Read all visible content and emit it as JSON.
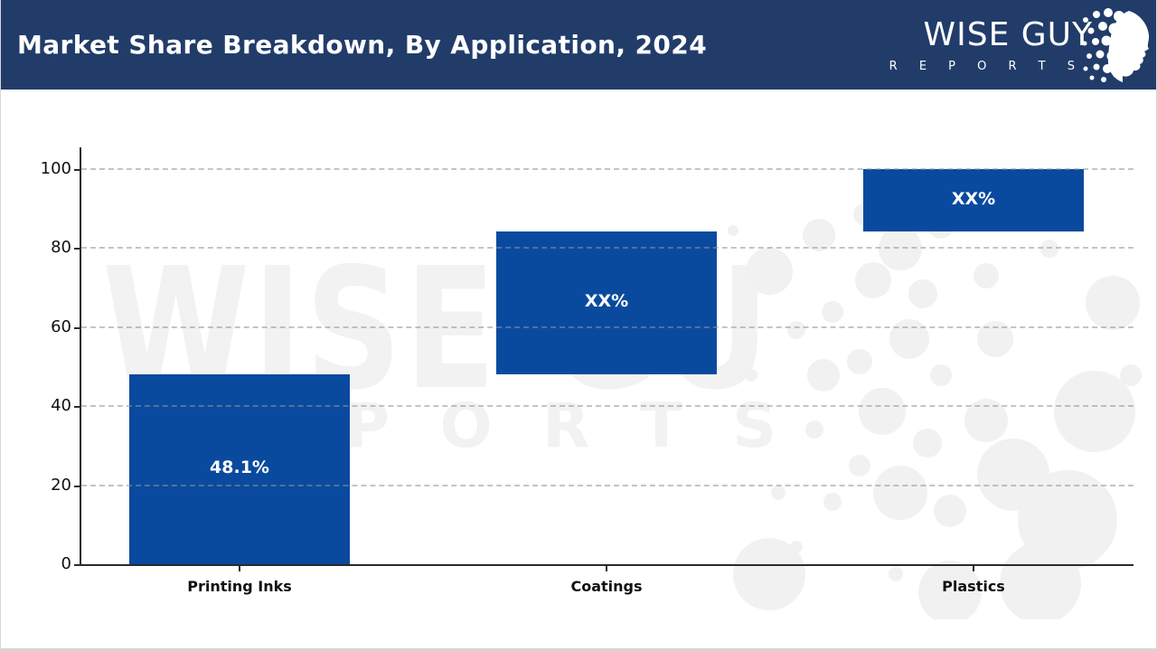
{
  "header": {
    "title": "Market Share Breakdown, By Application, 2024",
    "logo": {
      "line1": "WISE GUY",
      "line2": "R E P O R T S"
    }
  },
  "watermark": {
    "line1": "WISE GU",
    "line2": "R E P O R T S"
  },
  "chart_data": {
    "type": "bar",
    "subtype": "waterfall",
    "title": "Market Share Breakdown, By Application, 2024",
    "categories": [
      "Printing Inks",
      "Coatings",
      "Plastics"
    ],
    "segments": [
      {
        "category": "Printing Inks",
        "start": 0,
        "end": 48.1,
        "label": "48.1%"
      },
      {
        "category": "Coatings",
        "start": 48.1,
        "end": 84.2,
        "label": "XX%"
      },
      {
        "category": "Plastics",
        "start": 84.2,
        "end": 100,
        "label": "XX%"
      }
    ],
    "xlabel": "",
    "ylabel": "",
    "ylim": [
      0,
      105
    ],
    "yticks": [
      0,
      20,
      40,
      60,
      80,
      100
    ],
    "grid": true,
    "grid_style": "dashed",
    "legend": "none",
    "bar_color": "#0a4a9e",
    "bar_label_color": "#ffffff"
  },
  "colors": {
    "header_bg": "#223c6a",
    "title_text": "#ffffff",
    "bar_blue": "#0a4a9e",
    "bar_label": "#ffffff",
    "axis": "#2b2b2b",
    "tick_text": "#111111",
    "gridline": "#c9cdd4",
    "watermark": "#f2f2f2",
    "frame_border": "#d8d8d8"
  }
}
